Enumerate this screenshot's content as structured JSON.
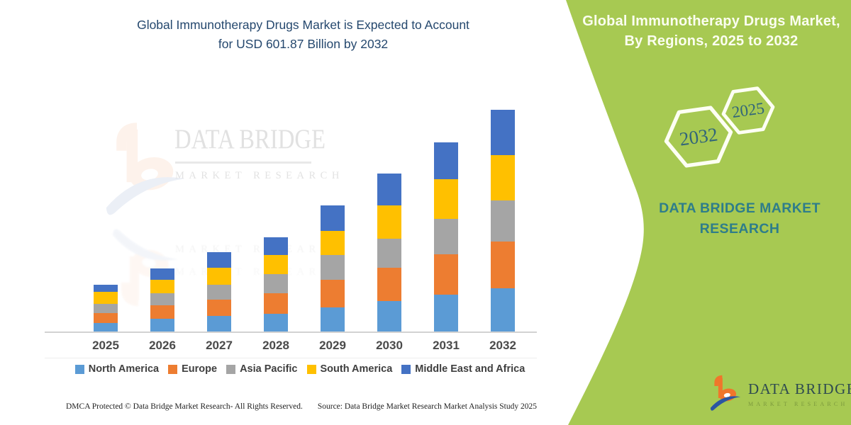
{
  "header": {
    "title_line1": "Global Immunotherapy Drugs Market is Expected to Account",
    "title_line2": "for USD 601.87 Billion by 2032"
  },
  "side_panel": {
    "bg_color": "#A7C952",
    "heading_line1": "Global Immunotherapy Drugs Market,",
    "heading_line2": "By Regions, 2025 to 2032",
    "hexagons": [
      {
        "label": "2032"
      },
      {
        "label": "2025"
      }
    ],
    "brand_line1": "DATA BRIDGE MARKET",
    "brand_line2": "RESEARCH",
    "logo_title": "DATA BRIDGE",
    "logo_subtitle": "MARKET RESEARCH"
  },
  "watermark": {
    "title": "DATA BRIDGE",
    "subtitle": "MARKET RESEARCH"
  },
  "footer": {
    "left": "DMCA Protected © Data Bridge Market Research- All Rights Reserved.",
    "right": "Source: Data Bridge Market Research Market Analysis Study 2025"
  },
  "chart_data": {
    "type": "bar",
    "stacked": true,
    "title": "Global Immunotherapy Drugs Market is Expected to Account for USD 601.87 Billion by 2032",
    "units": "USD Billion (estimated from bar heights; 2032 total = 601.87 per title)",
    "categories": [
      "2025",
      "2026",
      "2027",
      "2028",
      "2029",
      "2030",
      "2031",
      "2032"
    ],
    "series": [
      {
        "name": "North America",
        "color": "#5B9BD5",
        "values": [
          22.5,
          34.6,
          42.3,
          48.1,
          65.4,
          82.7,
          100.0,
          117.5
        ]
      },
      {
        "name": "Europe",
        "color": "#ED7D31",
        "values": [
          27.5,
          36.5,
          44.2,
          55.8,
          75.0,
          90.4,
          109.6,
          126.9
        ]
      },
      {
        "name": "Asia Pacific",
        "color": "#A5A5A5",
        "values": [
          24.4,
          32.7,
          40.4,
          51.9,
          67.3,
          78.8,
          96.2,
          111.5
        ]
      },
      {
        "name": "South America",
        "color": "#FFC000",
        "values": [
          32.7,
          36.5,
          46.2,
          51.9,
          65.4,
          90.4,
          107.7,
          123.1
        ]
      },
      {
        "name": "Middle East and Africa",
        "color": "#4472C4",
        "values": [
          19.8,
          30.8,
          42.3,
          48.1,
          69.2,
          86.5,
          100.0,
          122.9
        ]
      }
    ],
    "totals": [
      126.9,
      171.1,
      215.4,
      255.8,
      342.3,
      428.8,
      513.5,
      601.9
    ],
    "x_axis_labels_visible": true,
    "y_axis_visible": false,
    "gridlines": false,
    "legend_position": "bottom"
  },
  "colors": {
    "title_text": "#25486E",
    "panel_green": "#A7C952",
    "teal_text": "#2E7D8A",
    "hexagon_year_text": "#31657A",
    "axis_label_text": "#4A4A4A",
    "legend_text": "#3F3F3F",
    "axis_line": "#D2D2D2",
    "logo_orange": "#F0762B",
    "logo_blue": "#2B55A2"
  }
}
